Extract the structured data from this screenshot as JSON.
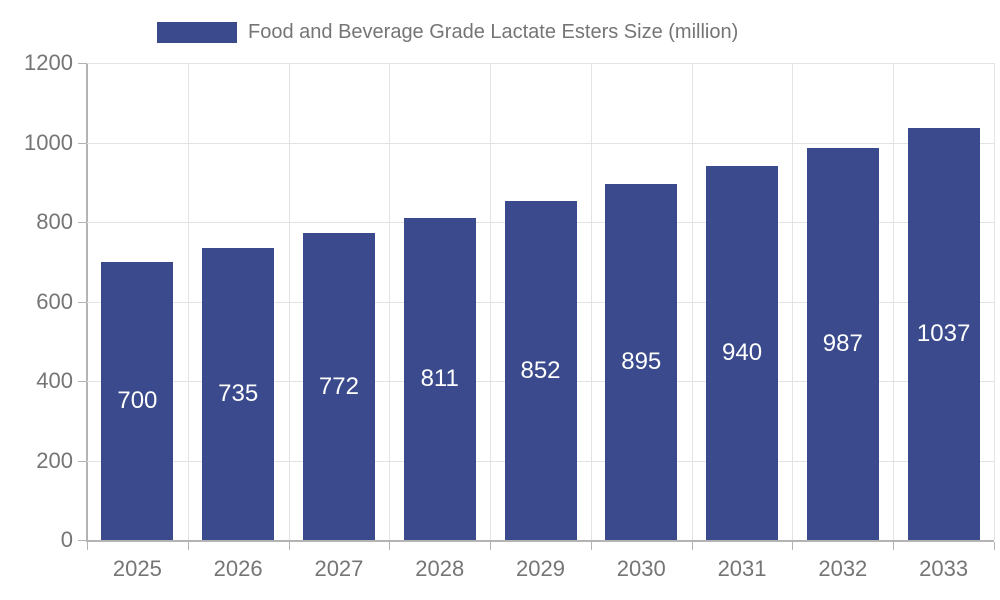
{
  "legend": {
    "label": "Food and Beverage Grade Lactate Esters Size (million)"
  },
  "chart_data": {
    "type": "bar",
    "title": "Food and Beverage Grade Lactate Esters Size (million)",
    "categories": [
      "2025",
      "2026",
      "2027",
      "2028",
      "2029",
      "2030",
      "2031",
      "2032",
      "2033"
    ],
    "values": [
      700,
      735,
      772,
      811,
      852,
      895,
      940,
      987,
      1037
    ],
    "xlabel": "",
    "ylabel": "",
    "ylim": [
      0,
      1200
    ],
    "yticks": [
      0,
      200,
      400,
      600,
      800,
      1000,
      1200
    ],
    "grid": true,
    "legend_position": "top",
    "colors": {
      "bar": "#3a4a8c",
      "bar_value_text": "#ffffff",
      "axis_text": "#757575",
      "gridline": "#e3e3e3",
      "axis_line": "#b3b3b3"
    }
  }
}
